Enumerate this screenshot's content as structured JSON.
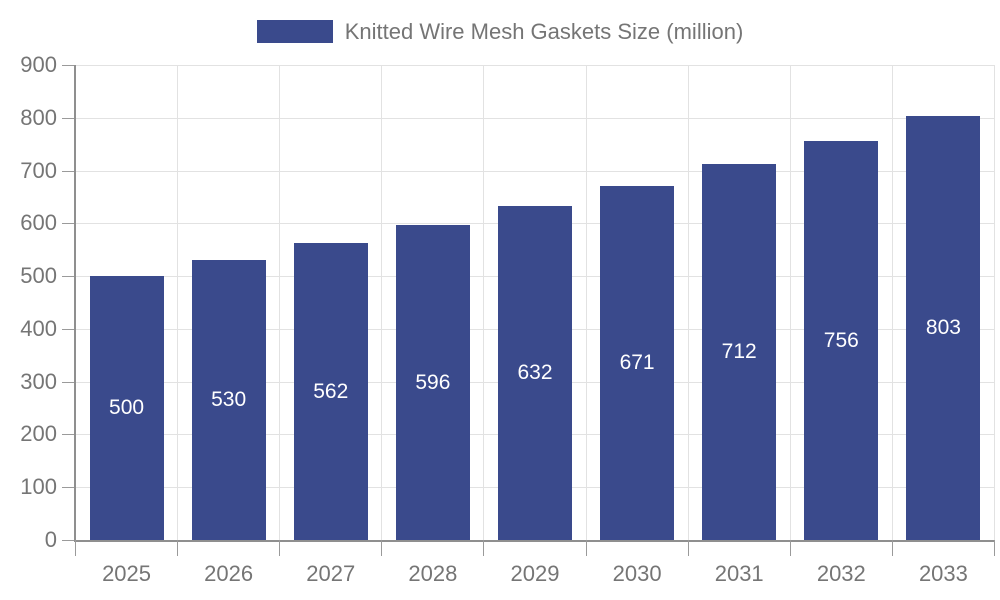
{
  "chart_data": {
    "type": "bar",
    "legend_label": "Knitted Wire Mesh Gaskets Size (million)",
    "legend_position": "top-center",
    "categories": [
      "2025",
      "2026",
      "2027",
      "2028",
      "2029",
      "2030",
      "2031",
      "2032",
      "2033"
    ],
    "values": [
      500,
      530,
      562,
      596,
      632,
      671,
      712,
      756,
      803
    ],
    "ylim": [
      0,
      900
    ],
    "yticks": [
      0,
      100,
      200,
      300,
      400,
      500,
      600,
      700,
      800,
      900
    ],
    "grid": "on",
    "colors": {
      "bar": "#3A4A8C",
      "bar_label": "#FFFFFF",
      "tick_label": "#757575",
      "legend_text": "#757575",
      "gridline": "#E2E2E2",
      "axis": "#8F8F8F",
      "tick_mark": "#9A9A9A"
    }
  }
}
